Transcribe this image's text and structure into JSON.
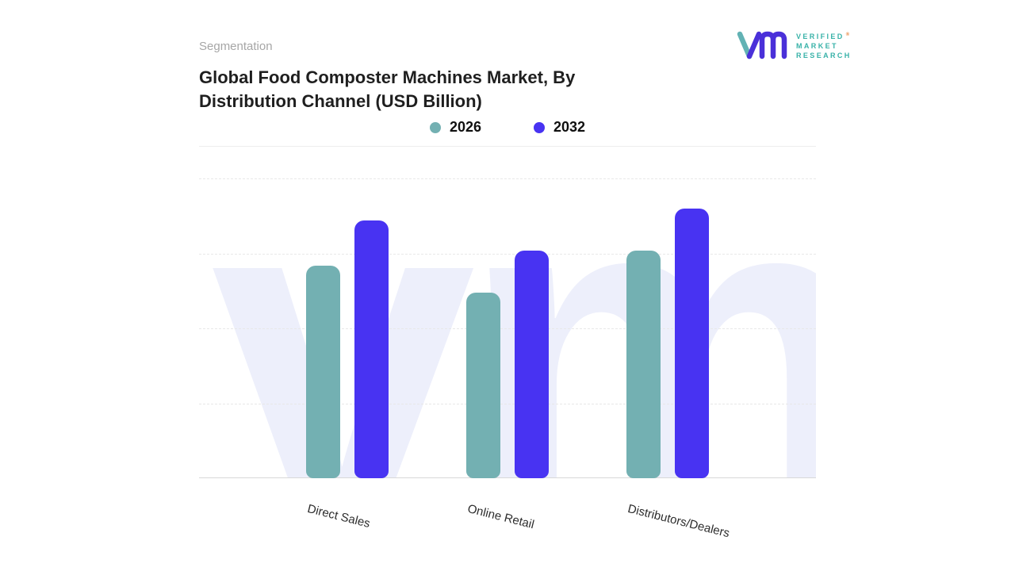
{
  "page": {
    "eyebrow": "Segmentation",
    "title_line1": "Global Food Composter Machines Market, By",
    "title_line2": "Distribution Channel (USD Billion)"
  },
  "logo": {
    "lines": [
      "VERIFIED",
      "MARKET",
      "RESEARCH"
    ],
    "registered": "®",
    "monogram_color": "#4a30d9",
    "accent_color": "#62b2b4",
    "text_color": "#38b2a8"
  },
  "legend": [
    {
      "label": "2026",
      "color": "#73b0b2"
    },
    {
      "label": "2032",
      "color": "#4833f2"
    }
  ],
  "watermark": "vm",
  "chart_data": {
    "type": "bar",
    "title": "Global Food Composter Machines Market, By Distribution Channel (USD Billion)",
    "categories": [
      "Direct Sales",
      "Online Retail",
      "Distributors/Dealers"
    ],
    "series": [
      {
        "name": "2026",
        "color": "#73b0b2",
        "values": [
          71,
          62,
          76
        ]
      },
      {
        "name": "2032",
        "color": "#4833f2",
        "values": [
          86,
          76,
          90
        ]
      }
    ],
    "xlabel": "",
    "ylabel": "",
    "ylim": [
      0,
      100
    ],
    "value_axis_labels_shown": false,
    "values_note": "No numeric axis in image; values are relative bar heights on a 0-100 scale",
    "grid": "dashed horizontal gridlines",
    "legend_position": "top center"
  }
}
